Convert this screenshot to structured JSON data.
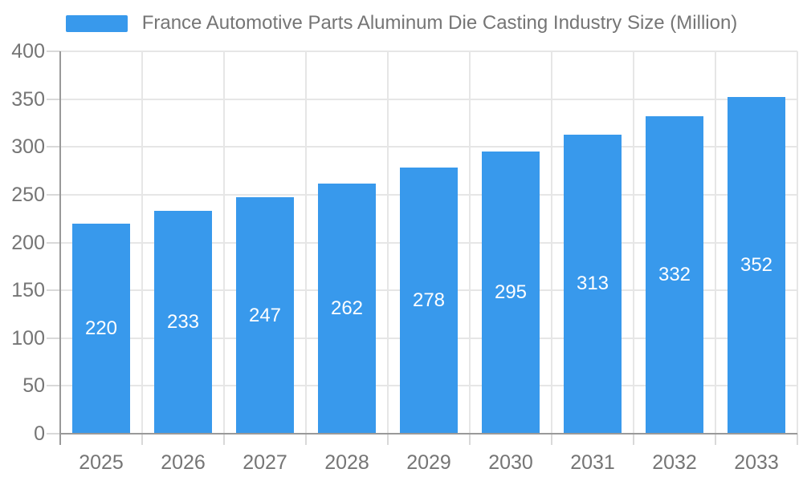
{
  "chart_data": {
    "type": "bar",
    "title": "France Automotive Parts Aluminum Die Casting Industry Size (Million)",
    "categories": [
      "2025",
      "2026",
      "2027",
      "2028",
      "2029",
      "2030",
      "2031",
      "2032",
      "2033"
    ],
    "series": [
      {
        "name": "France Automotive Parts Aluminum Die Casting Industry Size (Million)",
        "values": [
          220,
          233,
          247,
          262,
          278,
          295,
          313,
          332,
          352
        ]
      }
    ],
    "value_labels": [
      "220",
      "233",
      "247",
      "262",
      "278",
      "295",
      "313",
      "332",
      "352"
    ],
    "xlabel": "",
    "ylabel": "",
    "ylim": [
      0,
      400
    ],
    "yticks": [
      0,
      50,
      100,
      150,
      200,
      250,
      300,
      350,
      400
    ],
    "grid": true,
    "legend_position": "top-center",
    "colors": {
      "bar": "#3899EC",
      "value_label": "#FFFFFF",
      "axis_text": "#757575",
      "title_text": "#757575",
      "gridline": "#E6E6E6",
      "axis_line": "#999999",
      "tick": "#D9D9D9",
      "background": "#FFFFFF"
    }
  }
}
